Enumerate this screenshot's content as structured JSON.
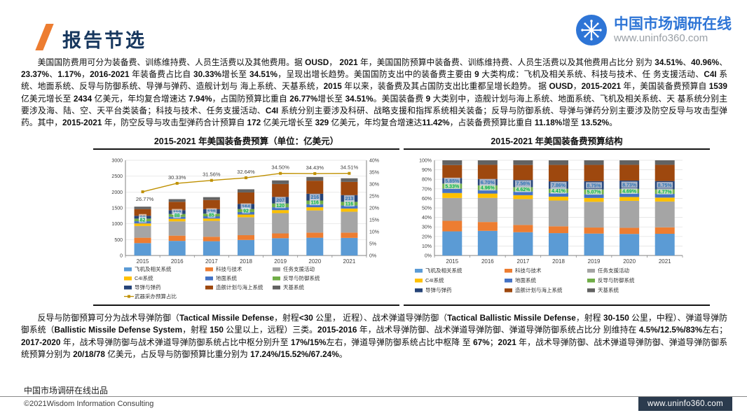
{
  "header": {
    "title": "报告节选",
    "logo_name": "中国市场调研在线",
    "logo_url": "www.uninfo360.com"
  },
  "colors": {
    "title_navy": "#17375E",
    "accent_orange": "#ED7D31",
    "logo_blue": "#2E75D6",
    "footer_box_bg": "#2B3B4E",
    "line_gold": "#BF9000",
    "label_blue": "#2E75B6",
    "label_green": "#00B050"
  },
  "paragraphs": {
    "p1": [
      {
        "t": "美国国防费用可分为装备费、训练维持费、人员生活费以及其他费用。据 ",
        "b": false
      },
      {
        "t": "OUSD",
        "b": true
      },
      {
        "t": "， ",
        "b": false
      },
      {
        "t": "2021",
        "b": true
      },
      {
        "t": " 年，美国国防预算中装备费、训练维持费、人员生活费以及其他费用占比分 别为 ",
        "b": false
      },
      {
        "t": "34.51%",
        "b": true
      },
      {
        "t": "、",
        "b": false
      },
      {
        "t": "40.96%",
        "b": true
      },
      {
        "t": "、",
        "b": false
      },
      {
        "t": "23.37%",
        "b": true
      },
      {
        "t": "、",
        "b": false
      },
      {
        "t": "1.17%",
        "b": true
      },
      {
        "t": "，",
        "b": false
      },
      {
        "t": "2016-2021",
        "b": true
      },
      {
        "t": " 年装备费占比自 ",
        "b": false
      },
      {
        "t": "30.33%",
        "b": true
      },
      {
        "t": "增长至 ",
        "b": false
      },
      {
        "t": "34.51%",
        "b": true
      },
      {
        "t": "，呈现出增长趋势。美国国防支出中的装备费主要由 ",
        "b": false
      },
      {
        "t": "9",
        "b": true
      },
      {
        "t": " 大类构成：飞机及相关系统、科技与技术、任 务支援活动、",
        "b": false
      },
      {
        "t": "C4I",
        "b": true
      },
      {
        "t": " 系统、地面系统、反导与防御系统、导弹与弹药、造舰计划与 海上系统、天基系统，",
        "b": false
      },
      {
        "t": "2015",
        "b": true
      },
      {
        "t": " 年以来，装备费及其占国防支出比重都呈增长趋势。 据 ",
        "b": false
      },
      {
        "t": "OUSD",
        "b": true
      },
      {
        "t": "，",
        "b": false
      },
      {
        "t": "2015-2021",
        "b": true
      },
      {
        "t": " 年，美国装备费预算自 ",
        "b": false
      },
      {
        "t": "1539",
        "b": true
      },
      {
        "t": " 亿美元增长至 ",
        "b": false
      },
      {
        "t": "2434",
        "b": true
      },
      {
        "t": " 亿美元，年均复合增速达 ",
        "b": false
      },
      {
        "t": "7.94%",
        "b": true
      },
      {
        "t": "，占国防预算比重自 ",
        "b": false
      },
      {
        "t": "26.77%",
        "b": true
      },
      {
        "t": "增长至 ",
        "b": false
      },
      {
        "t": "34.51%",
        "b": true
      },
      {
        "t": "。美国装备费 ",
        "b": false
      },
      {
        "t": "9",
        "b": true
      },
      {
        "t": " 大类别中，造舰计划与海上系统、地面系统、飞机及相关系统、天 基系统分别主要涉及海、陆、空、天平台类装备；科技与技术、任务支援活动、",
        "b": false
      },
      {
        "t": "C4I",
        "b": true
      },
      {
        "t": " 系统分别主要涉及科研、战略支援和指挥系统相关装备；反导与防御系统、导弹与弹药分别主要涉及防空反导与攻击型弹药。其中，",
        "b": false
      },
      {
        "t": "2015-2021",
        "b": true
      },
      {
        "t": " 年，防空反导与攻击型弹药合计预算自 ",
        "b": false
      },
      {
        "t": "172",
        "b": true
      },
      {
        "t": " 亿美元增长至 ",
        "b": false
      },
      {
        "t": "329",
        "b": true
      },
      {
        "t": " 亿美元，年均复合增速达",
        "b": false
      },
      {
        "t": "11.42%",
        "b": true
      },
      {
        "t": "，占装备费预算比重自 ",
        "b": false
      },
      {
        "t": "11.18%",
        "b": true
      },
      {
        "t": "增至 ",
        "b": false
      },
      {
        "t": "13.52%",
        "b": true
      },
      {
        "t": "。",
        "b": false
      }
    ],
    "p2": [
      {
        "t": "反导与防御预算可分为战术导弹防御（",
        "b": false
      },
      {
        "t": "Tactical Missile Defense",
        "b": true
      },
      {
        "t": "，射程",
        "b": false
      },
      {
        "t": "<30",
        "b": true
      },
      {
        "t": " 公里， 近程）、战术弹道导弹防御（",
        "b": false
      },
      {
        "t": "Tactical Ballistic Missile Defense",
        "b": true
      },
      {
        "t": "，射程 ",
        "b": false
      },
      {
        "t": "30-150",
        "b": true
      },
      {
        "t": " 公里，中程）、弹道导弹防御系统（",
        "b": false
      },
      {
        "t": "Ballistic Missile Defense System",
        "b": true
      },
      {
        "t": "，射程 ",
        "b": false
      },
      {
        "t": "150",
        "b": true
      },
      {
        "t": " 公里以上，远程）三类。",
        "b": false
      },
      {
        "t": "2015-2016",
        "b": true
      },
      {
        "t": " 年，战术导弹防御、战术弹道导弹防御、弹道导弹防御系统占比分 别维持在 ",
        "b": false
      },
      {
        "t": "4.5%/12.5%/83%",
        "b": true
      },
      {
        "t": "左右；",
        "b": false
      },
      {
        "t": "2017-2020",
        "b": true
      },
      {
        "t": " 年，战术导弹防御与战术弹道导弹防御系统占比中枢分别升至 ",
        "b": false
      },
      {
        "t": "17%/15%",
        "b": true
      },
      {
        "t": "左右，弹道导弹防御系统占比中枢降 至 ",
        "b": false
      },
      {
        "t": "67%",
        "b": true
      },
      {
        "t": "；",
        "b": false
      },
      {
        "t": "2021",
        "b": true
      },
      {
        "t": " 年，战术导弹防御、战术弹道导弹防御、弹道导弹防御系统预算分别为 ",
        "b": false
      },
      {
        "t": "20/18/78",
        "b": true
      },
      {
        "t": " 亿美元，占反导与防御预算比重分别为 ",
        "b": false
      },
      {
        "t": "17.24%/15.52%/67.24%",
        "b": true
      },
      {
        "t": "。",
        "b": false
      }
    ]
  },
  "chart_data": [
    {
      "type": "stacked-bar+line",
      "title": "2015-2021 年美国装备费预算（单位：亿美元）",
      "categories": [
        "2015",
        "2016",
        "2017",
        "2018",
        "2019",
        "2020",
        "2021"
      ],
      "y_axis": {
        "min": 0,
        "max": 3000,
        "step": 500,
        "label": "亿美元"
      },
      "y2_axis": {
        "min": 0,
        "max": 40,
        "step": 5,
        "format": "percent"
      },
      "grid": true,
      "legend_position": "bottom",
      "totals": [
        1539,
        1776,
        1839,
        2087,
        2366,
        2474,
        2434
      ],
      "series": [
        {
          "name": "飞机及相关系统",
          "color": "#5B9BD5",
          "values": [
            390,
            460,
            450,
            490,
            545,
            560,
            555
          ]
        },
        {
          "name": "科技与技术",
          "color": "#ED7D31",
          "values": [
            170,
            165,
            140,
            150,
            150,
            160,
            165
          ]
        },
        {
          "name": "任务支援活动",
          "color": "#A5A5A5",
          "values": [
            370,
            450,
            500,
            565,
            640,
            700,
            660
          ]
        },
        {
          "name": "C4I系统",
          "color": "#FFC000",
          "values": [
            80,
            80,
            75,
            85,
            95,
            100,
            100
          ]
        },
        {
          "name": "地面系统",
          "color": "#4472C4",
          "values": [
            70,
            65,
            70,
            80,
            90,
            95,
            95
          ]
        },
        {
          "name": "反导与防御系统",
          "color": "#70AD47",
          "values": [
            82,
            88,
            85,
            92,
            120,
            116,
            116
          ]
        },
        {
          "name": "导弹与弹药",
          "color": "#264478",
          "values": [
            90,
            119,
            139,
            164,
            207,
            216,
            213
          ]
        },
        {
          "name": "造舰计划与海上系统",
          "color": "#9E480E",
          "values": [
            210,
            265,
            290,
            360,
            405,
            410,
            415
          ]
        },
        {
          "name": "天基系统",
          "color": "#636363",
          "values": [
            77,
            84,
            90,
            101,
            114,
            117,
            115
          ]
        }
      ],
      "segment_labels": [
        {
          "series": "导弹与弹药",
          "color": "#2E75B6",
          "texts": [
            "90",
            "119",
            "139",
            "164",
            "207",
            "216",
            "213"
          ]
        },
        {
          "series": "反导与防御系统",
          "color": "#00B050",
          "texts": [
            "82",
            "88",
            "85",
            "92",
            "120",
            "116",
            "116"
          ]
        }
      ],
      "line": {
        "name": "武器采办预算占比",
        "color": "#BF9000",
        "values": [
          26.77,
          30.33,
          31.56,
          32.64,
          34.5,
          34.43,
          34.51
        ],
        "labels": [
          "26.77%",
          "30.33%",
          "31.56%",
          "32.64%",
          "34.50%",
          "34.43%",
          "34.51%"
        ]
      }
    },
    {
      "type": "stacked-bar-100",
      "title": "2015-2021 年美国装备费预算结构",
      "categories": [
        "2015",
        "2016",
        "2017",
        "2018",
        "2019",
        "2020",
        "2021"
      ],
      "y_axis": {
        "min": 0,
        "max": 100,
        "step": 10,
        "format": "percent"
      },
      "grid": true,
      "legend_position": "bottom",
      "series": [
        {
          "name": "飞机及相关系统",
          "color": "#5B9BD5",
          "values": [
            390,
            460,
            450,
            490,
            545,
            560,
            555
          ]
        },
        {
          "name": "科技与技术",
          "color": "#ED7D31",
          "values": [
            170,
            165,
            140,
            150,
            150,
            160,
            165
          ]
        },
        {
          "name": "任务支援活动",
          "color": "#A5A5A5",
          "values": [
            370,
            450,
            500,
            565,
            640,
            700,
            660
          ]
        },
        {
          "name": "C4I系统",
          "color": "#FFC000",
          "values": [
            80,
            80,
            75,
            85,
            95,
            100,
            100
          ]
        },
        {
          "name": "地面系统",
          "color": "#4472C4",
          "values": [
            70,
            65,
            70,
            80,
            90,
            95,
            95
          ]
        },
        {
          "name": "反导与防御系统",
          "color": "#70AD47",
          "values": [
            82,
            88,
            85,
            92,
            120,
            116,
            116
          ]
        },
        {
          "name": "导弹与弹药",
          "color": "#264478",
          "values": [
            90,
            119,
            139,
            164,
            207,
            216,
            213
          ]
        },
        {
          "name": "造舰计划与海上系统",
          "color": "#9E480E",
          "values": [
            210,
            265,
            290,
            360,
            405,
            410,
            415
          ]
        },
        {
          "name": "天基系统",
          "color": "#636363",
          "values": [
            77,
            84,
            90,
            101,
            114,
            117,
            115
          ]
        }
      ],
      "segment_labels": [
        {
          "series": "导弹与弹药",
          "color": "#2E75B6",
          "texts": [
            "5.85%",
            "6.70%",
            "7.56%",
            "7.86%",
            "8.75%",
            "8.73%",
            "8.75%"
          ]
        },
        {
          "series": "反导与防御系统",
          "color": "#00B050",
          "texts": [
            "5.33%",
            "4.96%",
            "4.62%",
            "4.41%",
            "5.07%",
            "4.69%",
            "4.77%"
          ]
        }
      ]
    }
  ],
  "footer": {
    "produced_by": "中国市场调研在线出品",
    "copyright": "©2021Wisdom Information Consulting",
    "url_box": "www.uninfo360.com"
  }
}
